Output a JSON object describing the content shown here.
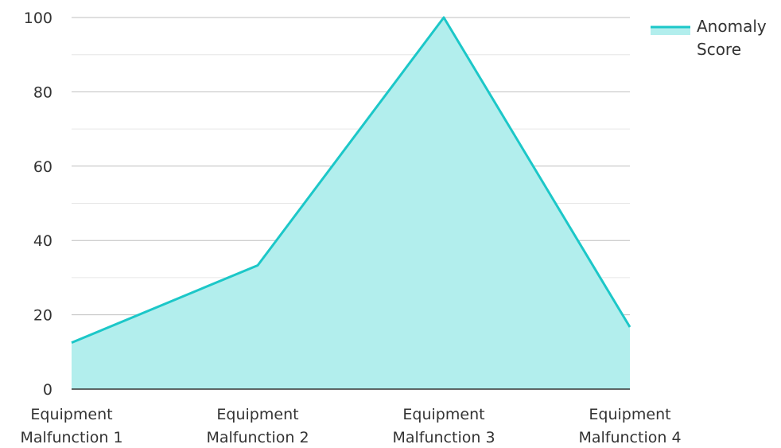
{
  "chart_data": {
    "type": "area",
    "title": "",
    "xlabel": "",
    "ylabel": "",
    "categories": [
      [
        "Equipment",
        "Malfunction 1"
      ],
      [
        "Equipment",
        "Malfunction 2"
      ],
      [
        "Equipment",
        "Malfunction 3"
      ],
      [
        "Equipment",
        "Malfunction 4"
      ]
    ],
    "series": [
      {
        "name": [
          "Anomaly",
          "Score"
        ],
        "values": [
          12.5,
          33.3,
          100,
          16.7
        ]
      }
    ],
    "ylim": [
      0,
      100
    ],
    "yticks": [
      "0",
      "20",
      "40",
      "60",
      "80",
      "100"
    ],
    "grid": true,
    "legend_position": "top-right",
    "colors": {
      "line": "#1cc7c8",
      "fill": "#b2eeed",
      "grid_major": "#bfbfbf",
      "grid_minor": "#e6e6e6",
      "axis": "#333333"
    }
  }
}
